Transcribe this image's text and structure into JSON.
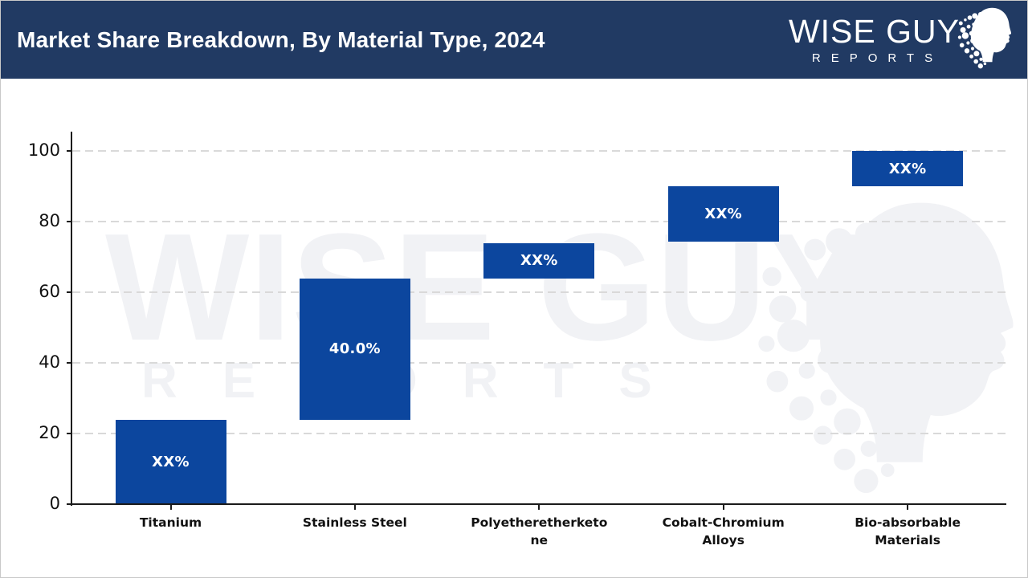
{
  "header": {
    "title": "Market Share Breakdown, By Material Type, 2024",
    "brand_line1": "WISE GUY",
    "brand_line2": "REPORTS"
  },
  "watermark": {
    "line1": "WISE GUY",
    "line2": "REPORTS"
  },
  "colors": {
    "header_bg": "#213a63",
    "bar": "#0c469e",
    "bar_label": "#ffffff",
    "grid": "#d9d9d9",
    "axis": "#1a1a1a",
    "watermark": "#f1f2f5"
  },
  "chart_data": {
    "type": "bar",
    "subtype": "floating-waterfall",
    "title": "Market Share Breakdown, By Material Type, 2024",
    "categories": [
      "Titanium",
      "Stainless Steel",
      "Polyetheretherketone",
      "Cobalt-Chromium Alloys",
      "Bio-absorbable Materials"
    ],
    "bars": [
      {
        "category_lines": [
          "Titanium"
        ],
        "start": 0,
        "end": 24,
        "label": "XX%"
      },
      {
        "category_lines": [
          "Stainless Steel"
        ],
        "start": 24,
        "end": 64,
        "label": "40.0%"
      },
      {
        "category_lines": [
          "Polyetheretherketo",
          "ne"
        ],
        "start": 64,
        "end": 74,
        "label": "XX%"
      },
      {
        "category_lines": [
          "Cobalt-Chromium",
          "Alloys"
        ],
        "start": 74.5,
        "end": 90,
        "label": "XX%"
      },
      {
        "category_lines": [
          "Bio-absorbable",
          "Materials"
        ],
        "start": 90,
        "end": 100,
        "label": "XX%"
      }
    ],
    "yticks": [
      0,
      20,
      40,
      60,
      80,
      100
    ],
    "ylim": [
      0,
      105.5
    ],
    "xlabel": "",
    "ylabel": "",
    "grid": "horizontal-dashed",
    "legend": "none"
  }
}
